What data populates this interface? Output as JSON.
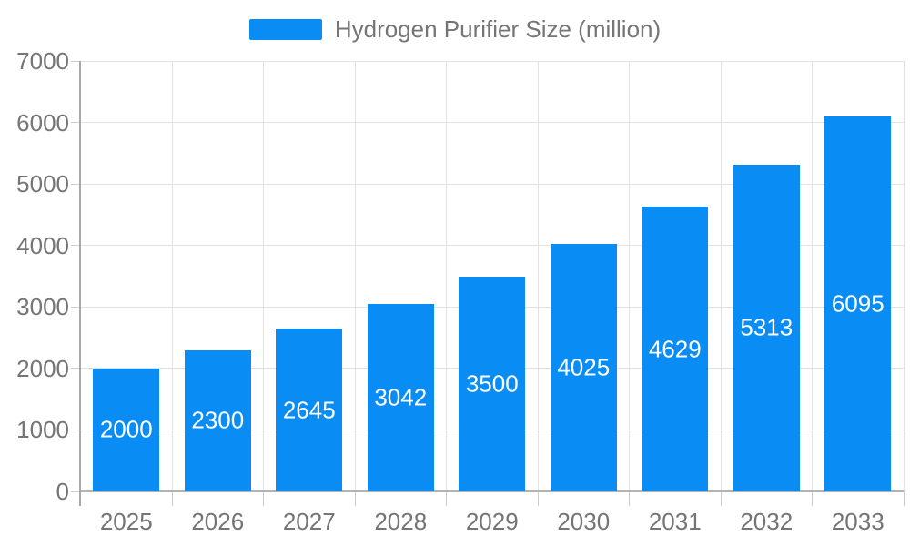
{
  "legend": {
    "label": "Hydrogen Purifier Size (million)"
  },
  "chart_data": {
    "type": "bar",
    "title": "Hydrogen Purifier Size (million)",
    "series_name": "Hydrogen Purifier Size (million)",
    "categories": [
      "2025",
      "2026",
      "2027",
      "2028",
      "2029",
      "2030",
      "2031",
      "2032",
      "2033"
    ],
    "values": [
      2000,
      2300,
      2645,
      3042,
      3500,
      4025,
      4629,
      5313,
      6095
    ],
    "ylim": [
      0,
      7000
    ],
    "ytick_step": 1000,
    "ytick_labels": [
      "0",
      "1000",
      "2000",
      "3000",
      "4000",
      "5000",
      "6000",
      "7000"
    ],
    "grid": true,
    "legend_position": "top-center",
    "value_labels": "inside-center-white",
    "colors": {
      "bar": "#0a8cf5",
      "value_label": "#ffffff",
      "axis_text": "#757575",
      "gridline": "#e2e2e2",
      "axis_line": "#a9a9a9",
      "tick": "#cccccc",
      "background": "#ffffff"
    }
  }
}
